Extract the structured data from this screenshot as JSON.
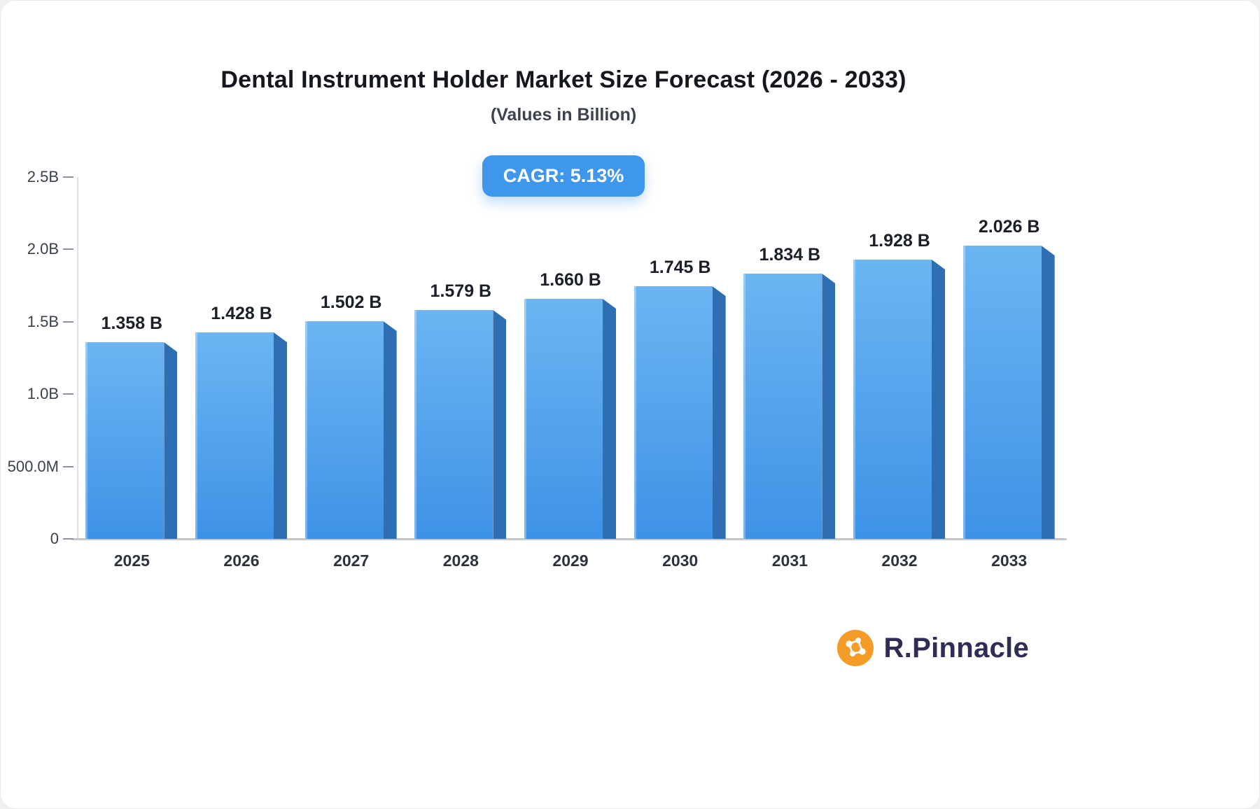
{
  "header": {
    "title": "Dental Instrument Holder Market Size Forecast (2026 - 2033)",
    "subtitle": "(Values in Billion)",
    "cagr_badge": "CAGR: 5.13%"
  },
  "logo": {
    "text": "R.Pinnacle",
    "icon_color": "#f49b28"
  },
  "colors": {
    "badge_bg": "#3e97ed",
    "bar_front_top": "#6cb5f2",
    "bar_front_bottom": "#3e92e6",
    "bar_side": "#2e6fb4",
    "axis": "#c3c8ce"
  },
  "chart_data": {
    "type": "bar",
    "title": "Dental Instrument Holder Market Size Forecast (2026 - 2033)",
    "subtitle": "(Values in Billion)",
    "annotation": "CAGR: 5.13%",
    "categories": [
      "2025",
      "2026",
      "2027",
      "2028",
      "2029",
      "2030",
      "2031",
      "2032",
      "2033"
    ],
    "values": [
      1.358,
      1.428,
      1.502,
      1.579,
      1.66,
      1.745,
      1.834,
      1.928,
      2.026
    ],
    "value_labels": [
      "1.358 B",
      "1.428 B",
      "1.502 B",
      "1.579 B",
      "1.660 B",
      "1.745 B",
      "1.834 B",
      "1.928 B",
      "2.026 B"
    ],
    "xlabel": "",
    "ylabel": "",
    "unit": "Billion USD",
    "ylim": [
      0,
      2.5
    ],
    "yticks": [
      {
        "v": 0,
        "label": "0"
      },
      {
        "v": 0.5,
        "label": "500.0M"
      },
      {
        "v": 1.0,
        "label": "1.0B"
      },
      {
        "v": 1.5,
        "label": "1.5B"
      },
      {
        "v": 2.0,
        "label": "2.0B"
      },
      {
        "v": 2.5,
        "label": "2.5B"
      }
    ],
    "grid": false,
    "legend": false
  }
}
